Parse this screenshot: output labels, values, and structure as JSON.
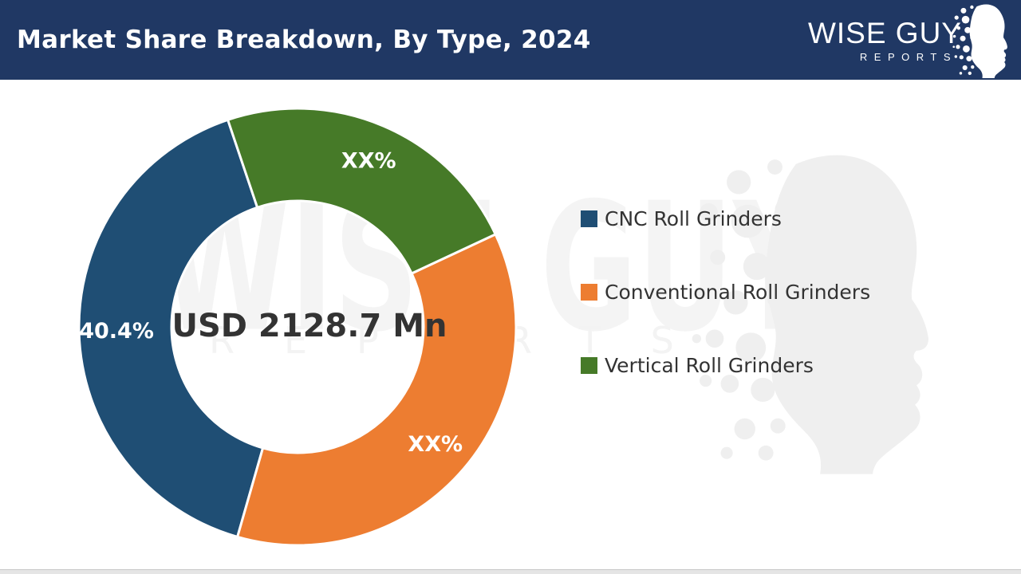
{
  "header": {
    "title": "Market Share Breakdown, By Type, 2024",
    "bg_color": "#203864",
    "logo": {
      "name": "WISE GUY",
      "sub": "REPORTS"
    }
  },
  "watermark": {
    "line1": "WISE GUY",
    "line2": "REPORTS"
  },
  "chart_data": {
    "type": "pie",
    "subtype": "donut",
    "title": "Market Share Breakdown, By Type, 2024",
    "center_label": "USD 2128.7 Mn",
    "segments": [
      {
        "name": "CNC Roll Grinders",
        "value_pct": 40.4,
        "label": "40.4%",
        "color": "#1f4e74"
      },
      {
        "name": "Conventional Roll Grinders",
        "value_pct": 36.4,
        "label": "XX%",
        "color": "#ed7d31"
      },
      {
        "name": "Vertical Roll Grinders",
        "value_pct": 23.2,
        "label": "XX%",
        "color": "#467a28"
      }
    ],
    "start_angle_deg": 108.6,
    "direction": "counterclockwise",
    "legend_position": "right",
    "donut_hole": true
  },
  "colors": {
    "header_bg": "#203864",
    "center_text": "#333333",
    "legend_text": "#333333",
    "slice_label_text": "#ffffff",
    "slice_separator": "#ffffff",
    "watermark_text": "#f4f4f4",
    "watermark_head": "#efefef",
    "footer_strip": "#e5e5e5"
  }
}
